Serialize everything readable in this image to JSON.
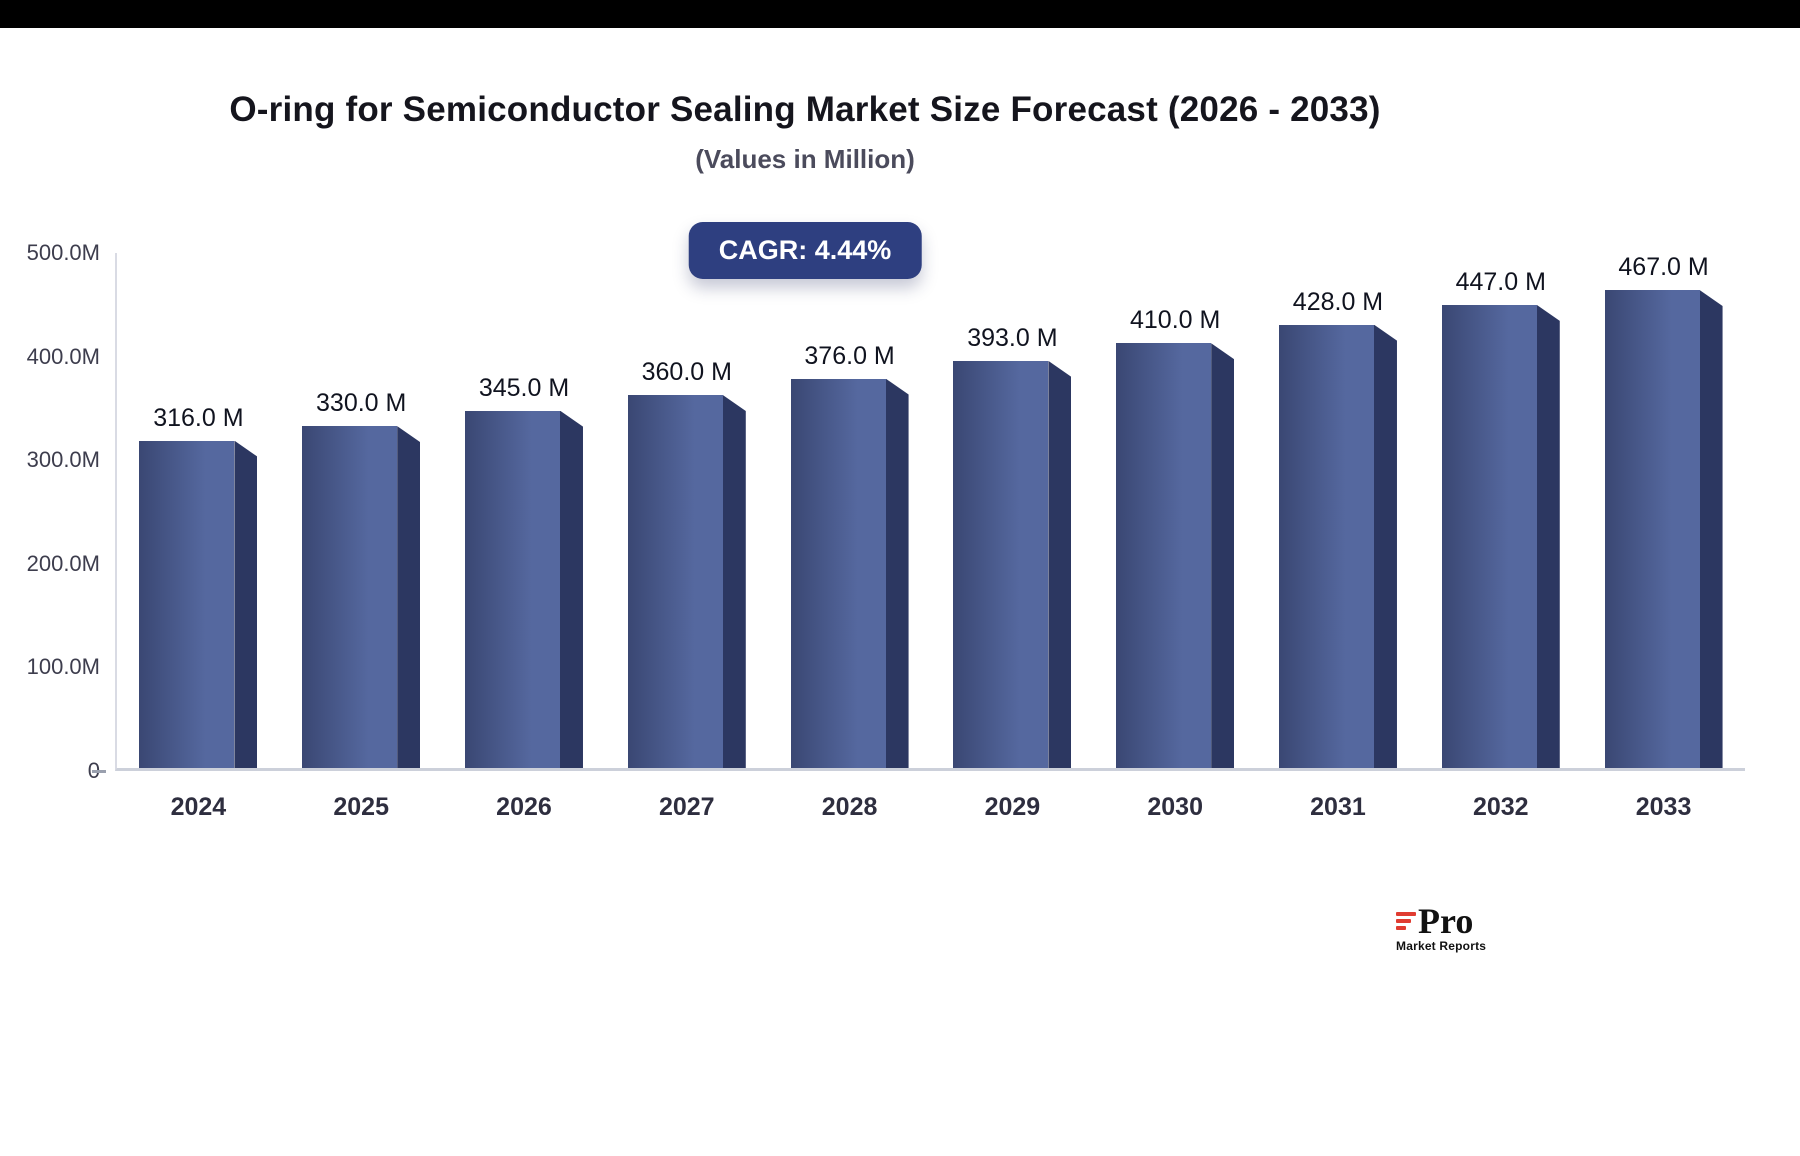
{
  "header": {
    "title": "O-ring for Semiconductor Sealing Market Size Forecast (2026 - 2033)",
    "subtitle": "(Values in Million)",
    "cagr_badge": "CAGR: 4.44%",
    "badge_color": "#2e3f80"
  },
  "chart_data": {
    "type": "bar",
    "title": "O-ring for Semiconductor Sealing Market Size Forecast (2026 - 2033)",
    "subtitle": "(Values in Million)",
    "unit": "Million",
    "cagr": "4.44%",
    "categories": [
      "2024",
      "2025",
      "2026",
      "2027",
      "2028",
      "2029",
      "2030",
      "2031",
      "2032",
      "2033"
    ],
    "values": [
      316,
      330,
      345,
      360,
      376,
      393,
      410,
      428,
      447,
      467
    ],
    "value_labels": [
      "316.0 M",
      "330.0 M",
      "345.0 M",
      "360.0 M",
      "376.0 M",
      "393.0 M",
      "410.0 M",
      "428.0 M",
      "447.0 M",
      "467.0 M"
    ],
    "ylim": [
      0,
      500
    ],
    "yticks": [
      {
        "label": "500.0M",
        "value": 500
      },
      {
        "label": "400.0M",
        "value": 400
      },
      {
        "label": "300.0M",
        "value": 300
      },
      {
        "label": "200.0M",
        "value": 200
      },
      {
        "label": "100.0M",
        "value": 100
      },
      {
        "label": "0",
        "value": 0
      }
    ],
    "grid": false,
    "legend": false,
    "bar_colors": {
      "front_dark": "#3a4773",
      "front_light": "#55689f",
      "side": "#2c3761"
    }
  },
  "footer": {
    "logo_text": "Pro",
    "logo_subtext": "Market Reports",
    "logo_accent_color": "#e03c31"
  }
}
